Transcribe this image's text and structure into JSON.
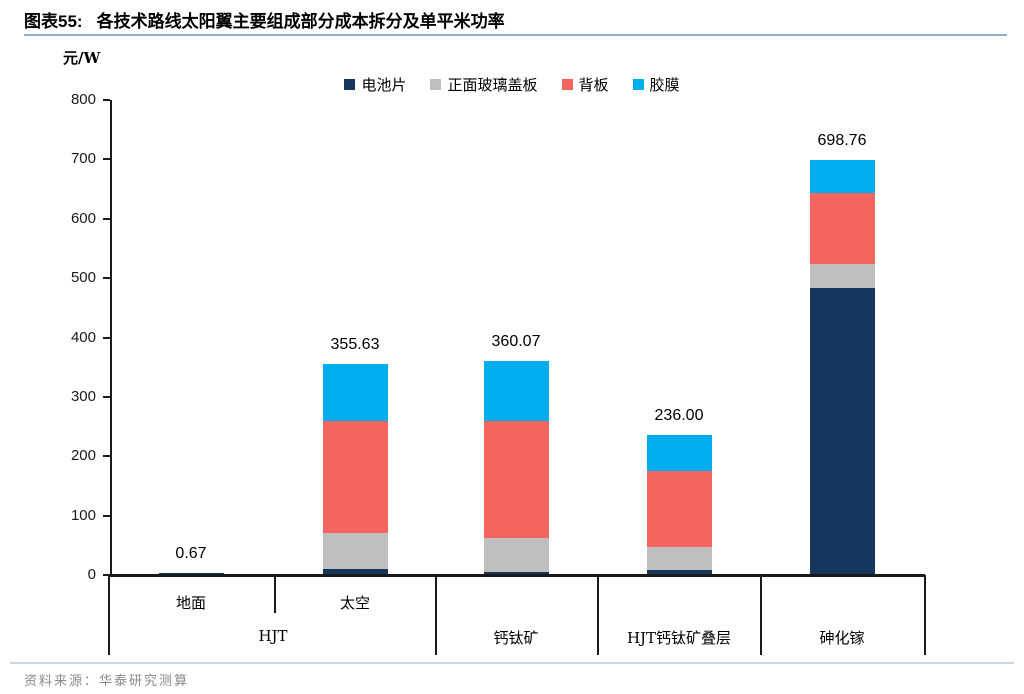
{
  "header": {
    "figure_label": "图表55:",
    "title": "各技术路线太阳翼主要组成部分成本拆分及单平米功率"
  },
  "footer": {
    "source": "资料来源：华泰研究测算"
  },
  "chart_data": {
    "type": "bar",
    "stacked": true,
    "title": "各技术路线太阳翼主要组成部分成本拆分及单平米功率",
    "unit_label": "元/W",
    "categories": [
      "地面",
      "太空",
      "钙钛矿",
      "HJT钙钛矿叠层",
      "砷化镓"
    ],
    "groups": [
      {
        "label": "HJT",
        "span": [
          0,
          1
        ]
      },
      {
        "label": "钙钛矿",
        "span": [
          2,
          2
        ]
      },
      {
        "label": "HJT钙钛矿叠层",
        "span": [
          3,
          3
        ]
      },
      {
        "label": "砷化镓",
        "span": [
          4,
          4
        ]
      }
    ],
    "series": [
      {
        "name": "电池片",
        "color": "#17365d",
        "values": [
          0.67,
          10.0,
          5.0,
          8.0,
          484.0
        ]
      },
      {
        "name": "正面玻璃盖板",
        "color": "#bfbfbf",
        "values": [
          0,
          60.0,
          58.0,
          39.0,
          39.0
        ]
      },
      {
        "name": "背板",
        "color": "#f4655f",
        "values": [
          0,
          190.0,
          197.07,
          128.0,
          121.0
        ]
      },
      {
        "name": "胶膜",
        "color": "#00aeef",
        "values": [
          0,
          95.63,
          100.0,
          61.0,
          54.76
        ]
      }
    ],
    "totals": [
      0.67,
      355.63,
      360.07,
      236.0,
      698.76
    ],
    "total_labels": [
      "0.67",
      "355.63",
      "360.07",
      "236.00",
      "698.76"
    ],
    "ylim": [
      0,
      800
    ],
    "ytick_step": 100,
    "yticks": [
      0,
      100,
      200,
      300,
      400,
      500,
      600,
      700,
      800
    ],
    "grid": false,
    "legend_position": "top"
  }
}
